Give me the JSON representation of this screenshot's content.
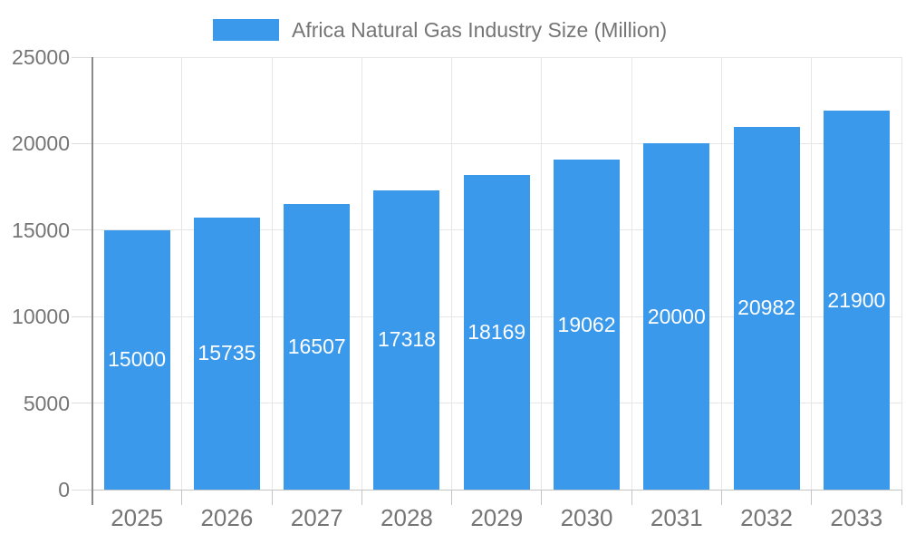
{
  "chart_data": {
    "type": "bar",
    "title": "Africa Natural Gas Industry Size (Million)",
    "legend": {
      "label": "Africa Natural Gas Industry Size (Million)",
      "position": "top"
    },
    "categories": [
      "2025",
      "2026",
      "2027",
      "2028",
      "2029",
      "2030",
      "2031",
      "2032",
      "2033"
    ],
    "values": [
      15000,
      15735,
      16507,
      17318,
      18169,
      19062,
      20000,
      20982,
      21900
    ],
    "bar_value_labels": [
      "15000",
      "15735",
      "16507",
      "17318",
      "18169",
      "19062",
      "20000",
      "20982",
      "21900"
    ],
    "xlabel": "",
    "ylabel": "",
    "ylim": [
      0,
      25000
    ],
    "yticks": [
      0,
      5000,
      10000,
      15000,
      20000,
      25000
    ],
    "ytick_labels": [
      "0",
      "5000",
      "10000",
      "15000",
      "20000",
      "25000"
    ],
    "grid": true,
    "legend_position": "top",
    "colors": {
      "bar": "#3B99EC",
      "bar_label_text": "#FFFFFF",
      "axis_text": "#757575",
      "gridline": "#E6E6E6",
      "baseline": "#C4C4C4",
      "tick": "#DCDCDC",
      "bottom_tick": "#C4C4C4",
      "axis_line": "#8A8A8A",
      "background": "#FFFFFF"
    }
  }
}
